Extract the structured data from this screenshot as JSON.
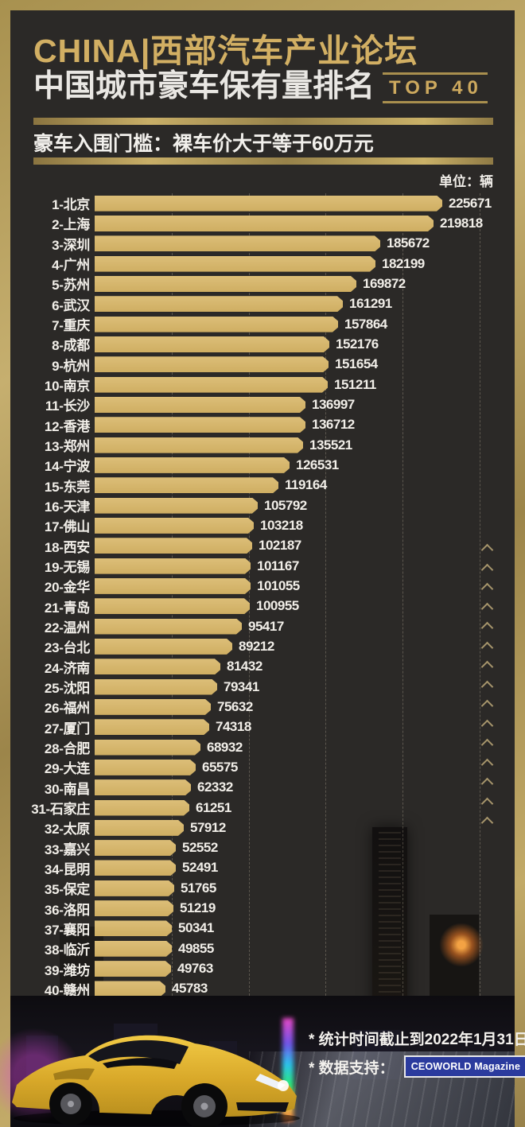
{
  "header": {
    "line1": "CHINA|西部汽车产业论坛",
    "line2": "中国城市豪车保有量排名",
    "top_badge": "TOP 40",
    "threshold": "豪车入围门槛：裸车价大于等于60万元",
    "unit_label": "单位：辆"
  },
  "chart_data": {
    "type": "bar",
    "orientation": "horizontal",
    "title": "中国城市豪车保有量排名 TOP 40",
    "unit": "辆",
    "xlim": [
      0,
      250000
    ],
    "x_ticks": [
      0,
      50000,
      100000,
      150000,
      200000,
      250000
    ],
    "grid": "dashed-vertical",
    "bar_color": "#d3b46a",
    "categories": [
      "1-北京",
      "2-上海",
      "3-深圳",
      "4-广州",
      "5-苏州",
      "6-武汉",
      "7-重庆",
      "8-成都",
      "9-杭州",
      "10-南京",
      "11-长沙",
      "12-香港",
      "13-郑州",
      "14-宁波",
      "15-东莞",
      "16-天津",
      "17-佛山",
      "18-西安",
      "19-无锡",
      "20-金华",
      "21-青岛",
      "22-温州",
      "23-台北",
      "24-济南",
      "25-沈阳",
      "26-福州",
      "27-厦门",
      "28-合肥",
      "29-大连",
      "30-南昌",
      "31-石家庄",
      "32-太原",
      "33-嘉兴",
      "34-昆明",
      "35-保定",
      "36-洛阳",
      "37-襄阳",
      "38-临沂",
      "39-潍坊",
      "40-赣州"
    ],
    "values": [
      225671,
      219818,
      185672,
      182199,
      169872,
      161291,
      157864,
      152176,
      151654,
      151211,
      136997,
      136712,
      135521,
      126531,
      119164,
      105792,
      103218,
      102187,
      101167,
      101055,
      100955,
      95417,
      89212,
      81432,
      79341,
      75632,
      74318,
      68932,
      65575,
      62332,
      61251,
      57912,
      52552,
      52491,
      51765,
      51219,
      50341,
      49855,
      49763,
      45783
    ]
  },
  "decor": {
    "chevron_count": 15,
    "chevron_color": "#bca878",
    "accent_gold": "#d2af63",
    "panel_bg": "#2b2927",
    "frame_gold": "#b49c5b"
  },
  "footnotes": {
    "note1": "* 统计时间截止到2022年1月31日",
    "note2": "* 数据支持：",
    "logo": "CEOWORLD Magazine"
  }
}
